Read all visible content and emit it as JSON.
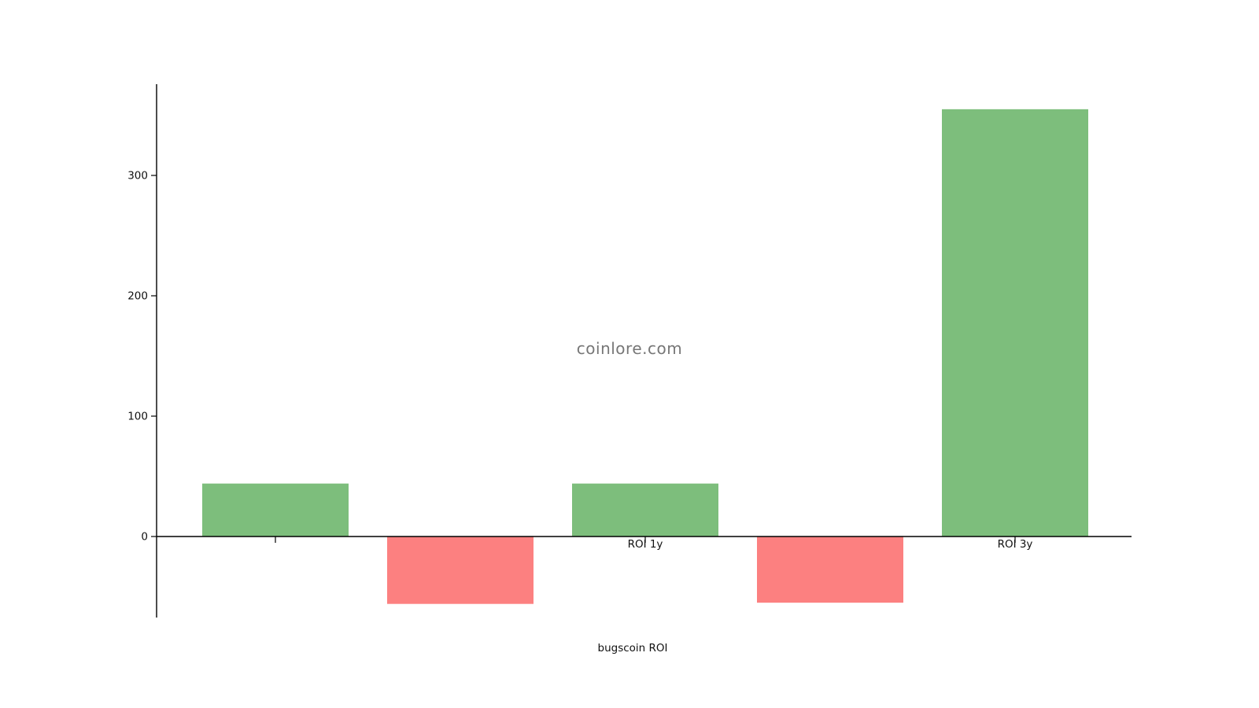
{
  "chart_data": {
    "type": "bar",
    "title": "bugscoin ROI",
    "watermark": "coinlore.com",
    "categories": [
      "",
      "",
      "ROI 1y",
      "",
      "ROI 3y"
    ],
    "values": [
      44,
      -56,
      44,
      -55,
      355
    ],
    "yticks": [
      0,
      100,
      200,
      300
    ],
    "ylim": [
      -67,
      377
    ],
    "grid": "off",
    "legend": "off",
    "positive_color": "#7dbe7c",
    "negative_color": "#fc8080",
    "axis_color": "#000000",
    "tick_text_color": "#111111",
    "watermark_color": "#777777",
    "background": "#ffffff",
    "x_ticks_visible": [
      0,
      2,
      4
    ]
  }
}
